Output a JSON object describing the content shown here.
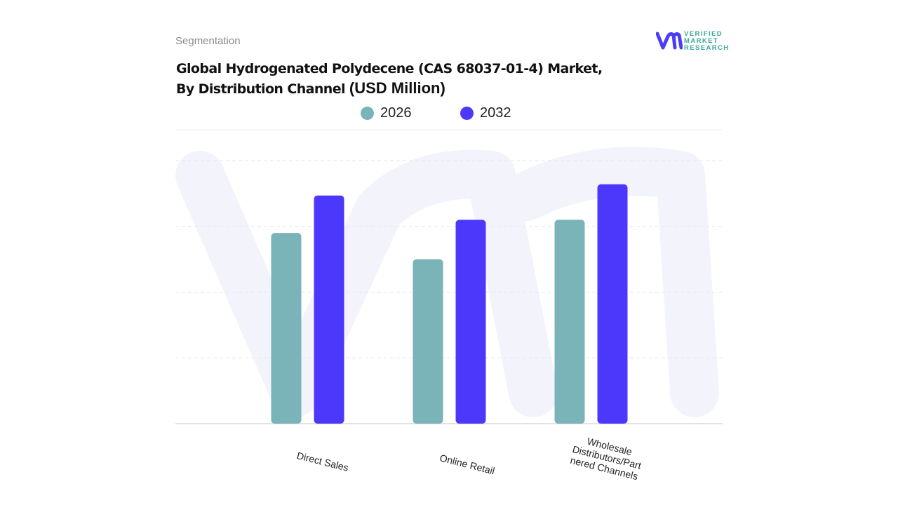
{
  "header": {
    "segment": "Segmentation",
    "title_line1": "Global Hydrogenated Polydecene (CAS 68037-01-4)  Market,",
    "title_line2": "By Distribution Channel ",
    "title_unit": "(USD Million)"
  },
  "logo": {
    "line1": "VERIFIED",
    "line2": "MARKET",
    "line3": "RESEARCH",
    "color": "#4b3cf7"
  },
  "chart_data": {
    "type": "bar",
    "title": "Global Hydrogenated Polydecene (CAS 68037-01-4)  Market, By Distribution Channel (USD Million)",
    "categories": [
      "Direct Sales",
      "Online Retail",
      "Wholesale Distributors/Partnered Channels"
    ],
    "series": [
      {
        "name": "2026",
        "color": "#7ab3b8",
        "values": [
          2.9,
          2.5,
          3.1
        ]
      },
      {
        "name": "2032",
        "color": "#4b38fb",
        "values": [
          3.47,
          3.1,
          3.64
        ]
      }
    ],
    "ylim": [
      0,
      4
    ],
    "grid": true,
    "legend": "top",
    "xlabel": "",
    "ylabel": ""
  },
  "xlabels": [
    "Direct Sales",
    "Online Retail",
    "Wholesale\nDistributors/Part\nnered Channels"
  ]
}
